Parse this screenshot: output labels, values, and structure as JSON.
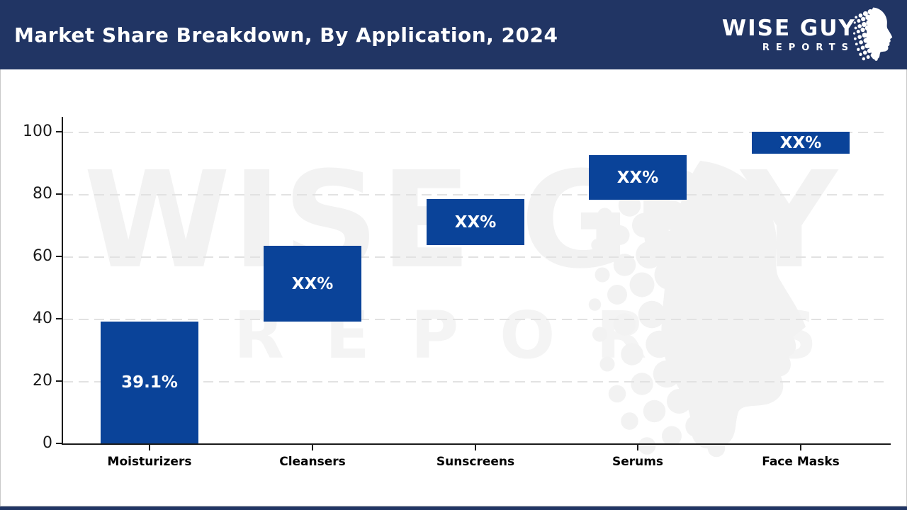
{
  "header": {
    "title": "Market Share Breakdown, By Application, 2024",
    "logo": {
      "line1": "WISE GUY",
      "line2": "REPORTS"
    }
  },
  "watermark": {
    "line1": "WISE GUY",
    "line2": "REPORTS"
  },
  "chart_data": {
    "type": "bar",
    "subtype": "waterfall",
    "title": "Market Share Breakdown, By Application, 2024",
    "categories": [
      "Moisturizers",
      "Cleansers",
      "Sunscreens",
      "Serums",
      "Face Masks"
    ],
    "bars": [
      {
        "category": "Moisturizers",
        "label": "39.1%",
        "start": 0,
        "end": 39.1
      },
      {
        "category": "Cleansers",
        "label": "XX%",
        "start": 39.1,
        "end": 63.5
      },
      {
        "category": "Sunscreens",
        "label": "XX%",
        "start": 63.5,
        "end": 78.3
      },
      {
        "category": "Serums",
        "label": "XX%",
        "start": 78.3,
        "end": 92.6
      },
      {
        "category": "Face Masks",
        "label": "XX%",
        "start": 93.0,
        "end": 100.0
      }
    ],
    "ylabel": "",
    "xlabel": "",
    "ylim": [
      0,
      100
    ],
    "yticks": [
      "0",
      "20",
      "40",
      "60",
      "80",
      "100"
    ],
    "grid": "horizontal dashed",
    "legend": null
  },
  "colors": {
    "header_bg": "#213564",
    "footer_bg": "#213564",
    "bar": "#0a4399",
    "bar_value_text": "#ffffff",
    "grid": "#e2e2e2",
    "axis": "#1a1a1a",
    "watermark": "#f2f2f2"
  }
}
